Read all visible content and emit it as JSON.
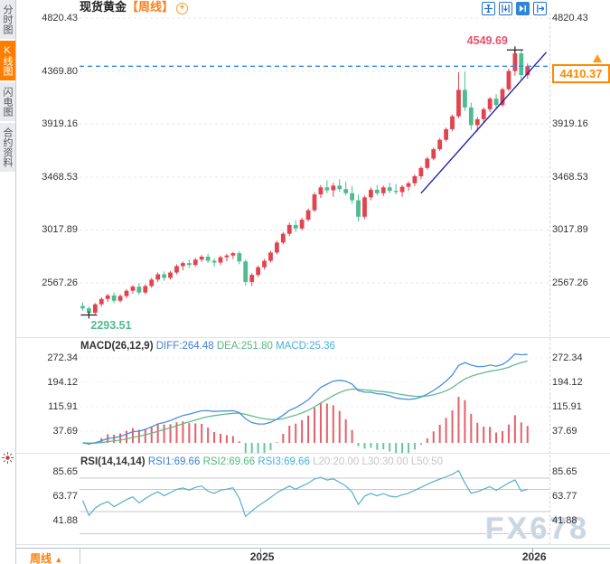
{
  "header": {
    "title": "现货黄金",
    "timeframe": "【周线】",
    "add_icon": "circle-plus"
  },
  "toolbar": {
    "icons": [
      "crosshair",
      "fit-range",
      "play-forward",
      "exit-right"
    ]
  },
  "sidebar": {
    "items": [
      {
        "label": "分时图",
        "active": false
      },
      {
        "label": "K线图",
        "active": true
      },
      {
        "label": "闪电图",
        "active": false
      },
      {
        "label": "合约资料",
        "active": false
      }
    ]
  },
  "macd_panel": {
    "legend": {
      "title": "MACD(26,12,9)",
      "diff": "DIFF:264.48",
      "dea": "DEA:251.80",
      "macd": "MACD:25.36"
    }
  },
  "rsi_panel": {
    "legend": {
      "title": "RSI(14,14,14)",
      "rsi1": "RSI1:69.66",
      "rsi2": "RSI2:69.66",
      "rsi3": "RSI3:69.66",
      "l20": "L20:20.00",
      "l30": "L30:30.00",
      "l50": "L50:50"
    },
    "settings_icon": "sun"
  },
  "annotations": {
    "high_label": "4549.69",
    "low_label": "2293.51",
    "last_price_label": "4410.37"
  },
  "footer": {
    "timeframe_tab": "周线",
    "tab_arrow": "▲"
  },
  "watermark": "FX678",
  "chart_data": {
    "type": "candlestick+macd+rsi",
    "title": "现货黄金 周线 (Spot Gold Weekly)",
    "main": {
      "ylim": [
        2113,
        4867
      ],
      "grid_values": [
        "4820.43",
        "4369.80",
        "3919.16",
        "3468.53",
        "3017.89",
        "2567.26"
      ],
      "last_price": 4410.37,
      "high_annotation": {
        "index": 69,
        "value": 4549.69
      },
      "low_annotation": {
        "index": 1,
        "value": 2293.51
      },
      "trendline": [
        {
          "i": 54,
          "v": 3330
        },
        {
          "i": 74,
          "v": 4530
        }
      ],
      "slots": 75,
      "candles": [
        [
          2370,
          2400,
          2330,
          2350
        ],
        [
          2350,
          2365,
          2293.51,
          2312
        ],
        [
          2312,
          2395,
          2300,
          2385
        ],
        [
          2385,
          2445,
          2365,
          2430
        ],
        [
          2430,
          2475,
          2405,
          2460
        ],
        [
          2460,
          2485,
          2395,
          2415
        ],
        [
          2415,
          2470,
          2400,
          2455
        ],
        [
          2455,
          2515,
          2435,
          2500
        ],
        [
          2500,
          2550,
          2475,
          2535
        ],
        [
          2535,
          2565,
          2465,
          2485
        ],
        [
          2485,
          2555,
          2470,
          2540
        ],
        [
          2540,
          2610,
          2525,
          2595
        ],
        [
          2595,
          2655,
          2575,
          2640
        ],
        [
          2640,
          2665,
          2585,
          2610
        ],
        [
          2610,
          2670,
          2595,
          2655
        ],
        [
          2655,
          2725,
          2640,
          2710
        ],
        [
          2710,
          2750,
          2675,
          2735
        ],
        [
          2735,
          2765,
          2695,
          2720
        ],
        [
          2720,
          2780,
          2705,
          2765
        ],
        [
          2765,
          2805,
          2745,
          2790
        ],
        [
          2790,
          2815,
          2735,
          2755
        ],
        [
          2755,
          2775,
          2705,
          2740
        ],
        [
          2740,
          2800,
          2720,
          2785
        ],
        [
          2785,
          2815,
          2750,
          2800
        ],
        [
          2800,
          2830,
          2770,
          2820
        ],
        [
          2820,
          2835,
          2725,
          2750
        ],
        [
          2750,
          2765,
          2545,
          2575
        ],
        [
          2575,
          2650,
          2540,
          2635
        ],
        [
          2635,
          2715,
          2615,
          2700
        ],
        [
          2700,
          2770,
          2680,
          2755
        ],
        [
          2755,
          2840,
          2740,
          2825
        ],
        [
          2825,
          2925,
          2810,
          2910
        ],
        [
          2910,
          3000,
          2895,
          2985
        ],
        [
          2985,
          3080,
          2965,
          3060
        ],
        [
          3060,
          3100,
          3000,
          3030
        ],
        [
          3030,
          3120,
          3015,
          3105
        ],
        [
          3105,
          3200,
          3090,
          3185
        ],
        [
          3185,
          3340,
          3170,
          3320
        ],
        [
          3320,
          3400,
          3290,
          3380
        ],
        [
          3380,
          3440,
          3330,
          3355
        ],
        [
          3355,
          3420,
          3300,
          3395
        ],
        [
          3395,
          3450,
          3340,
          3365
        ],
        [
          3365,
          3430,
          3310,
          3330
        ],
        [
          3330,
          3390,
          3240,
          3270
        ],
        [
          3270,
          3320,
          3090,
          3130
        ],
        [
          3130,
          3310,
          3110,
          3295
        ],
        [
          3295,
          3380,
          3270,
          3360
        ],
        [
          3360,
          3400,
          3310,
          3330
        ],
        [
          3330,
          3395,
          3305,
          3380
        ],
        [
          3380,
          3420,
          3330,
          3350
        ],
        [
          3350,
          3410,
          3320,
          3340
        ],
        [
          3340,
          3400,
          3300,
          3385
        ],
        [
          3385,
          3430,
          3350,
          3415
        ],
        [
          3415,
          3490,
          3390,
          3475
        ],
        [
          3475,
          3560,
          3450,
          3545
        ],
        [
          3545,
          3640,
          3530,
          3625
        ],
        [
          3625,
          3720,
          3610,
          3705
        ],
        [
          3705,
          3800,
          3690,
          3785
        ],
        [
          3785,
          3890,
          3770,
          3875
        ],
        [
          3875,
          4000,
          3860,
          3985
        ],
        [
          3985,
          4360,
          3970,
          4210
        ],
        [
          4210,
          4365,
          4030,
          4060
        ],
        [
          4060,
          4100,
          3870,
          3910
        ],
        [
          3910,
          3980,
          3855,
          3960
        ],
        [
          3960,
          4060,
          3930,
          4045
        ],
        [
          4045,
          4150,
          4020,
          4135
        ],
        [
          4135,
          4175,
          4050,
          4080
        ],
        [
          4080,
          4230,
          4065,
          4215
        ],
        [
          4215,
          4390,
          4200,
          4370
        ],
        [
          4370,
          4549.69,
          4330,
          4520
        ],
        [
          4520,
          4545,
          4290,
          4335
        ],
        [
          4335,
          4435,
          4305,
          4410.37
        ]
      ]
    },
    "macd": {
      "params": [
        26,
        12,
        9
      ],
      "grid_ylim": [
        -31.8,
        336.1
      ],
      "grid_values": [
        "272.34",
        "194.12",
        "115.91",
        "37.69"
      ]
    },
    "rsi": {
      "period": 14,
      "ylim": [
        20.85,
        101.85
      ],
      "grid_values": [
        "85.65",
        "63.77",
        "41.88"
      ],
      "ref_levels": [
        80,
        70,
        50,
        30,
        20
      ]
    },
    "x_years": [
      {
        "label": "2025",
        "pos": 0.363
      },
      {
        "label": "2026",
        "pos": 0.942
      }
    ],
    "colors": {
      "up": "#e2444f",
      "down": "#4fbb90",
      "diff_line": "#4a8fe0",
      "dea_line": "#5fbd8c",
      "rsi_line": "#58aed0",
      "trend": "#2323aa",
      "last_price_line": "#2f8be8",
      "grid": "#e7e7ea",
      "ref_line": "#c9c9cf",
      "accent": "#ff7e00"
    }
  }
}
